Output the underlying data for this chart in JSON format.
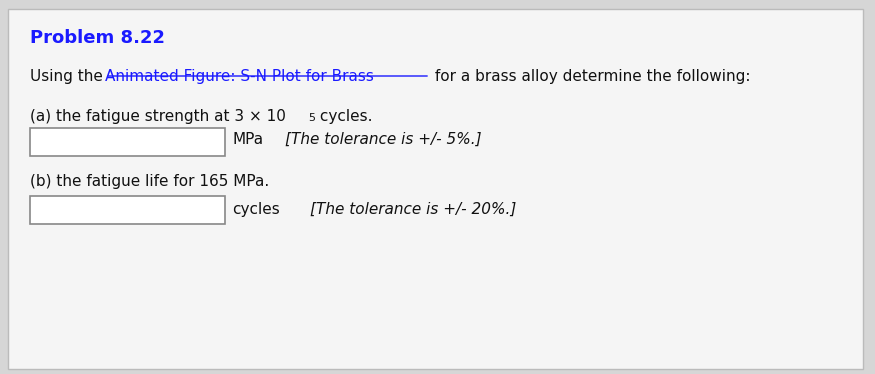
{
  "title": "Problem 8.22",
  "line1_plain": "Using the ",
  "line1_link": "Animated Figure: S-N Plot for Brass",
  "line1_rest": " for a brass alloy determine the following:",
  "part_a_label": "(a) the fatigue strength at 3 × 10",
  "part_a_sup": "5",
  "part_a_end": " cycles.",
  "part_a_unit": "MPa",
  "part_a_tolerance": "[The tolerance is +/- 5%.]",
  "part_b_label": "(b) the fatigue life for 165 MPa.",
  "part_b_unit": "cycles",
  "part_b_tolerance": "[The tolerance is +/- 20%.]",
  "bg_color": "#d6d6d6",
  "box_bg": "#f0f0f0",
  "box_border": "#999999",
  "panel_bg": "#f5f5f5",
  "title_color": "#1a1aff",
  "link_color": "#1a1aff",
  "text_color": "#1a1a1a",
  "italic_color": "#1a1a1a",
  "font_size_title": 13,
  "font_size_body": 11,
  "font_size_italic": 11
}
